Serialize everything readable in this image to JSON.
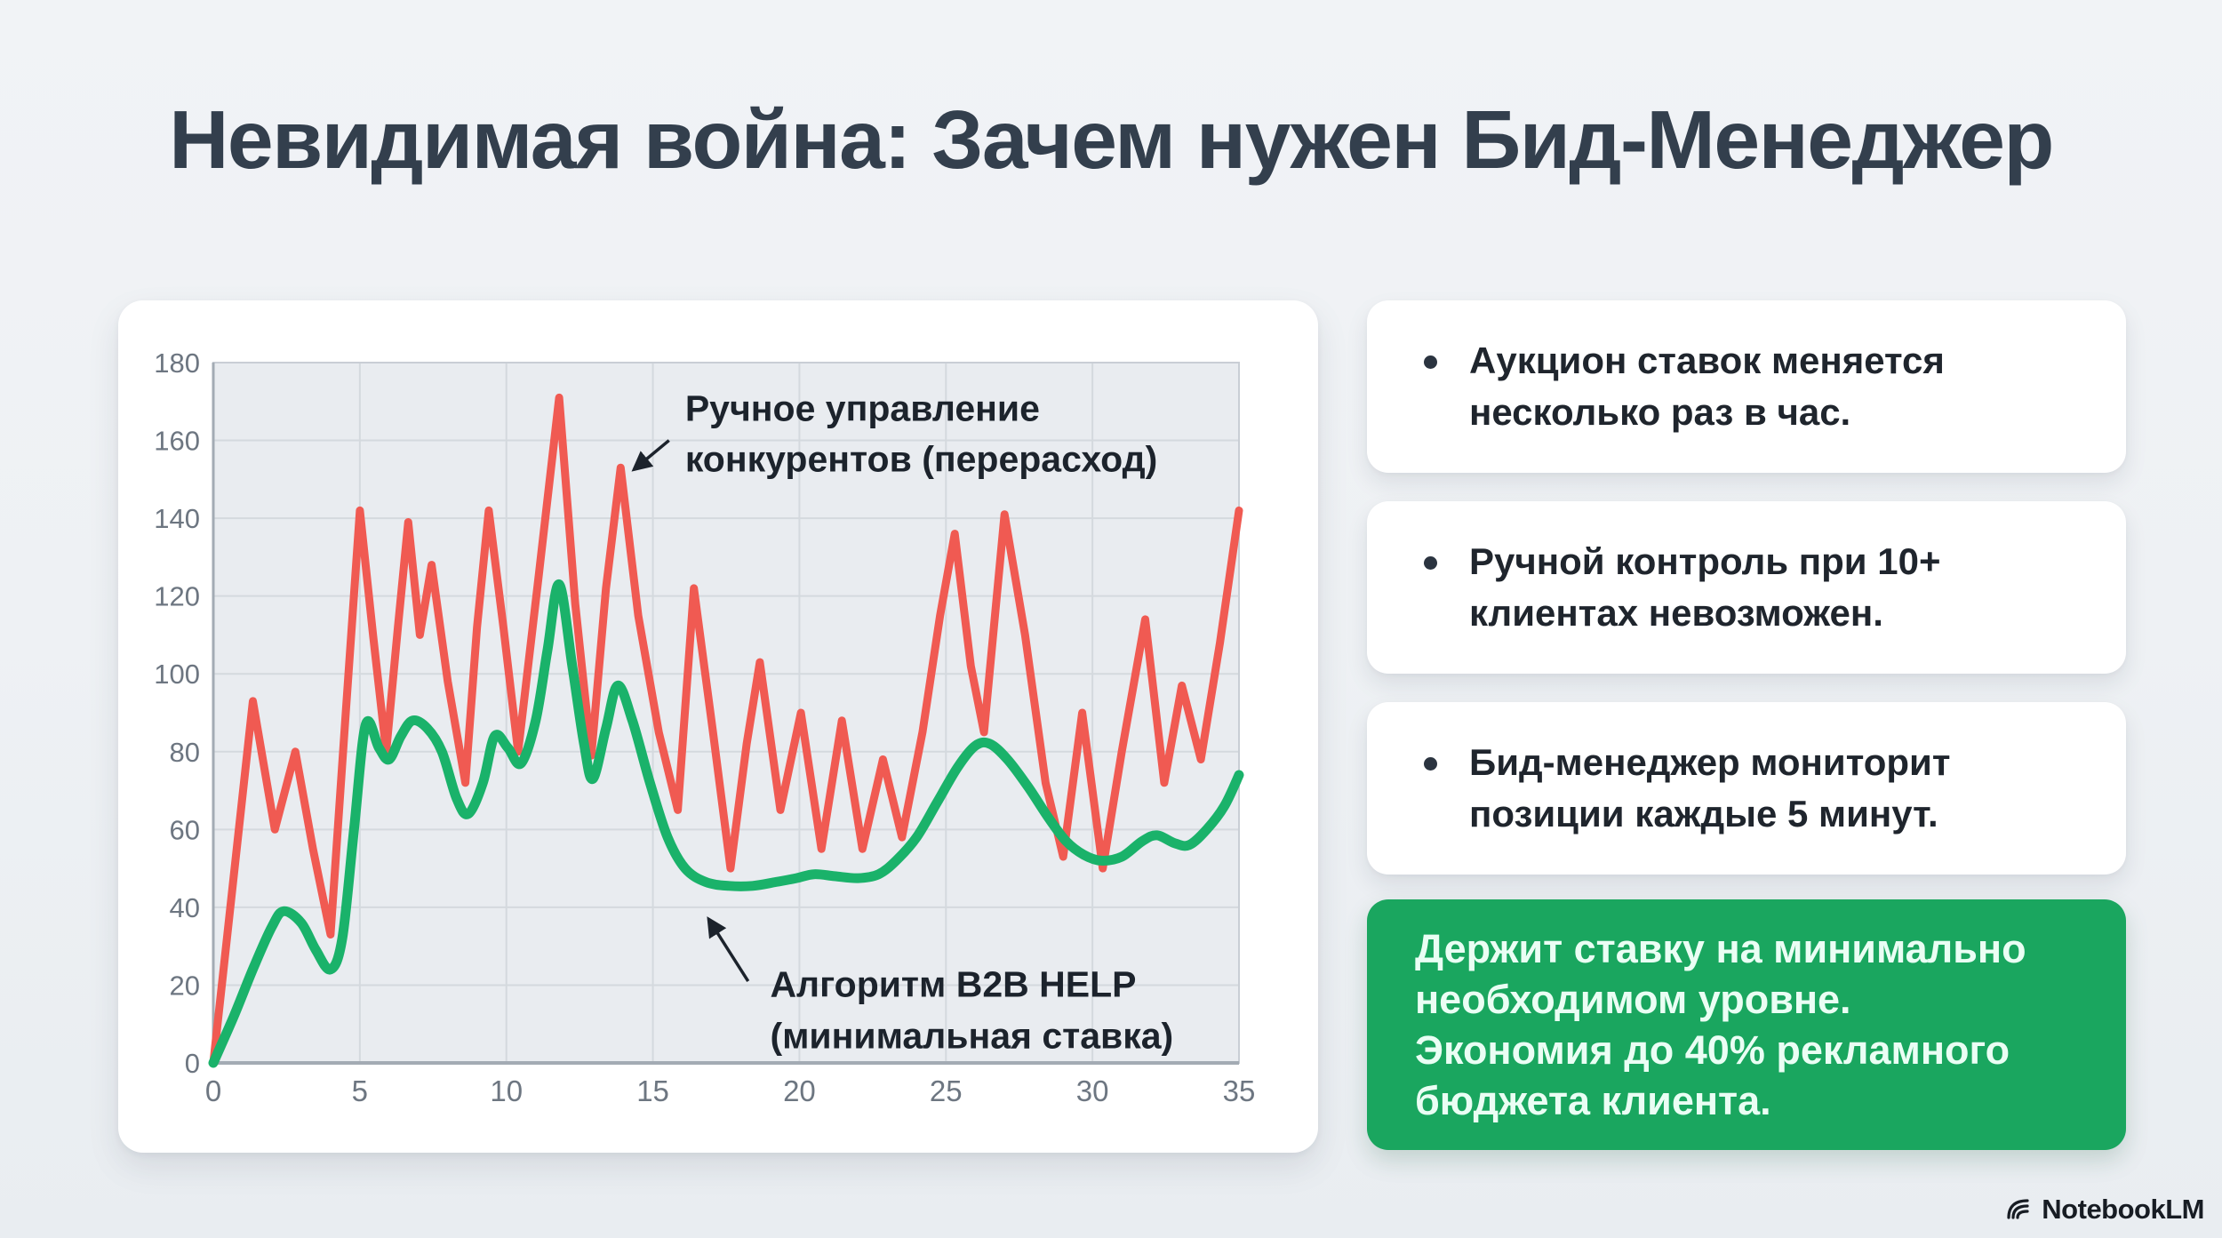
{
  "title": "Невидимая война: Зачем нужен Бид-Менеджер",
  "right_cards": [
    {
      "text": "Аукцион ставок меняется несколько раз в час."
    },
    {
      "text": "Ручной контроль при 10+ клиентах невозможен."
    },
    {
      "text": "Бид-менеджер мониторит позиции каждые 5 минут."
    }
  ],
  "highlight_card": {
    "paragraphs": [
      "Держит ставку на минимально необходимом уровне.",
      "Экономия до 40% рекламного бюджета клиента."
    ],
    "background": "#1aa65f",
    "text_color": "#eafef4"
  },
  "footer": {
    "brand": "NotebookLM"
  },
  "chart_data": {
    "type": "line",
    "title": "",
    "xlabel": "",
    "ylabel": "",
    "xlim": [
      0,
      35
    ],
    "ylim": [
      0,
      180
    ],
    "x_ticks": [
      0,
      5,
      10,
      15,
      20,
      25,
      30,
      35
    ],
    "y_ticks": [
      0,
      20,
      40,
      60,
      80,
      100,
      120,
      140,
      160,
      180
    ],
    "grid": true,
    "legend_position": "none",
    "colors": {
      "plot_bg": "#e9ecf0",
      "grid": "#d4d9de",
      "border": "#c9ced5",
      "axis": "#a3abb4",
      "tick_label": "#6d7681",
      "annotation": "#1c232c"
    },
    "series": [
      {
        "name": "Ручное управление конкурентов (перерасход)",
        "color": "#f05a52",
        "style": "jagged",
        "stroke_width": 9,
        "points": [
          [
            0,
            0
          ],
          [
            1.35,
            93
          ],
          [
            2.1,
            60
          ],
          [
            2.8,
            80
          ],
          [
            3.4,
            55
          ],
          [
            4,
            33
          ],
          [
            4.5,
            88
          ],
          [
            5,
            142
          ],
          [
            5.45,
            110
          ],
          [
            5.9,
            80
          ],
          [
            6.3,
            112
          ],
          [
            6.65,
            139
          ],
          [
            7.05,
            110
          ],
          [
            7.45,
            128
          ],
          [
            8,
            98
          ],
          [
            8.6,
            72
          ],
          [
            9,
            112
          ],
          [
            9.4,
            142
          ],
          [
            9.9,
            112
          ],
          [
            10.4,
            80
          ],
          [
            11.1,
            125
          ],
          [
            11.8,
            171
          ],
          [
            12.35,
            118
          ],
          [
            12.9,
            79
          ],
          [
            13.4,
            122
          ],
          [
            13.9,
            153
          ],
          [
            14.5,
            115
          ],
          [
            15.2,
            85
          ],
          [
            15.85,
            65
          ],
          [
            16.4,
            122
          ],
          [
            17.05,
            85
          ],
          [
            17.65,
            50
          ],
          [
            18.2,
            82
          ],
          [
            18.65,
            103
          ],
          [
            19.35,
            65
          ],
          [
            20.05,
            90
          ],
          [
            20.75,
            55
          ],
          [
            21.45,
            88
          ],
          [
            22.15,
            55
          ],
          [
            22.85,
            78
          ],
          [
            23.5,
            58
          ],
          [
            24.2,
            85
          ],
          [
            24.8,
            115
          ],
          [
            25.3,
            136
          ],
          [
            25.85,
            102
          ],
          [
            26.3,
            85
          ],
          [
            27,
            141
          ],
          [
            27.7,
            110
          ],
          [
            28.4,
            72
          ],
          [
            29,
            53
          ],
          [
            29.65,
            90
          ],
          [
            30.35,
            50
          ],
          [
            31,
            80
          ],
          [
            31.8,
            114
          ],
          [
            32.45,
            72
          ],
          [
            33.05,
            97
          ],
          [
            33.7,
            78
          ],
          [
            34.35,
            108
          ],
          [
            35,
            142
          ]
        ]
      },
      {
        "name": "Алгоритм B2B HELP (минимальная ставка)",
        "color": "#1ab26a",
        "style": "smooth",
        "stroke_width": 11,
        "points": [
          [
            0,
            0
          ],
          [
            0.7,
            12
          ],
          [
            1.4,
            25
          ],
          [
            2,
            35
          ],
          [
            2.4,
            39
          ],
          [
            3,
            36
          ],
          [
            3.5,
            29
          ],
          [
            4,
            24
          ],
          [
            4.4,
            32
          ],
          [
            4.8,
            60
          ],
          [
            5.2,
            87
          ],
          [
            5.65,
            81
          ],
          [
            6,
            78
          ],
          [
            6.4,
            84
          ],
          [
            6.8,
            88
          ],
          [
            7.3,
            86
          ],
          [
            7.8,
            80
          ],
          [
            8.3,
            68
          ],
          [
            8.7,
            64
          ],
          [
            9.2,
            72
          ],
          [
            9.6,
            84
          ],
          [
            10.05,
            81
          ],
          [
            10.5,
            77
          ],
          [
            11,
            88
          ],
          [
            11.4,
            106
          ],
          [
            11.8,
            123
          ],
          [
            12.25,
            102
          ],
          [
            12.65,
            82
          ],
          [
            12.95,
            73
          ],
          [
            13.4,
            86
          ],
          [
            13.8,
            97
          ],
          [
            14.3,
            88
          ],
          [
            14.9,
            72
          ],
          [
            15.5,
            58
          ],
          [
            16.1,
            50
          ],
          [
            16.8,
            46.5
          ],
          [
            17.6,
            45.5
          ],
          [
            18.4,
            45.5
          ],
          [
            19.2,
            46.5
          ],
          [
            19.9,
            47.5
          ],
          [
            20.5,
            48.5
          ],
          [
            21.2,
            48
          ],
          [
            22,
            47.5
          ],
          [
            22.7,
            48.5
          ],
          [
            23.3,
            52
          ],
          [
            24,
            58
          ],
          [
            24.7,
            67
          ],
          [
            25.4,
            76
          ],
          [
            26,
            81.5
          ],
          [
            26.5,
            82
          ],
          [
            27.1,
            78
          ],
          [
            27.8,
            71
          ],
          [
            28.5,
            63
          ],
          [
            29.1,
            57
          ],
          [
            29.7,
            53.5
          ],
          [
            30.3,
            52
          ],
          [
            31,
            53
          ],
          [
            31.7,
            57
          ],
          [
            32.2,
            58.5
          ],
          [
            32.8,
            56.5
          ],
          [
            33.3,
            56
          ],
          [
            33.9,
            60
          ],
          [
            34.5,
            66
          ],
          [
            35,
            74
          ]
        ]
      }
    ],
    "annotations": [
      {
        "lines": [
          "Ручное управление",
          "конкурентов (перерасход)"
        ],
        "text_x": 16.1,
        "line_y": [
          165,
          152
        ],
        "arrow": {
          "x1": 15.55,
          "y1": 160,
          "x2": 14.35,
          "y2": 152.5
        }
      },
      {
        "lines": [
          "Алгоритм B2B HELP",
          "(минимальная ставка)"
        ],
        "text_x": 19.0,
        "line_y": [
          17,
          3.8
        ],
        "arrow": {
          "x1": 18.25,
          "y1": 21,
          "x2": 16.9,
          "y2": 37
        }
      }
    ]
  }
}
